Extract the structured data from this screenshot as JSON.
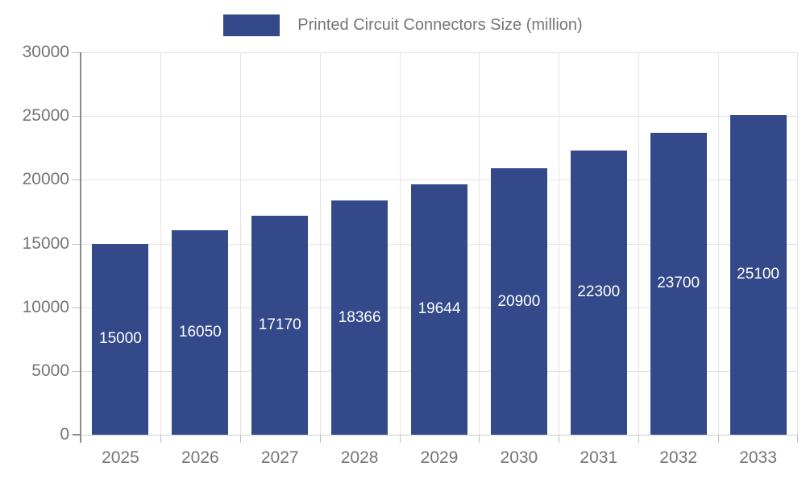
{
  "chart_data": {
    "type": "bar",
    "title": "Printed Circuit Connectors Size (million)",
    "legend": [
      "Printed Circuit Connectors Size (million)"
    ],
    "legend_position": "top-center",
    "categories": [
      "2025",
      "2026",
      "2027",
      "2028",
      "2029",
      "2030",
      "2031",
      "2032",
      "2033"
    ],
    "values": [
      15000,
      16050,
      17170,
      18366,
      19644,
      20900,
      22300,
      23700,
      25100
    ],
    "xlabel": "",
    "ylabel": "",
    "ylim": [
      0,
      30000
    ],
    "yticks": [
      0,
      5000,
      10000,
      15000,
      20000,
      25000,
      30000
    ],
    "grid": "on",
    "bar_color": "#34498A",
    "bar_label_color": "#ffffff",
    "axis_text_color": "#757575",
    "grid_color": "#e3e3e3"
  }
}
